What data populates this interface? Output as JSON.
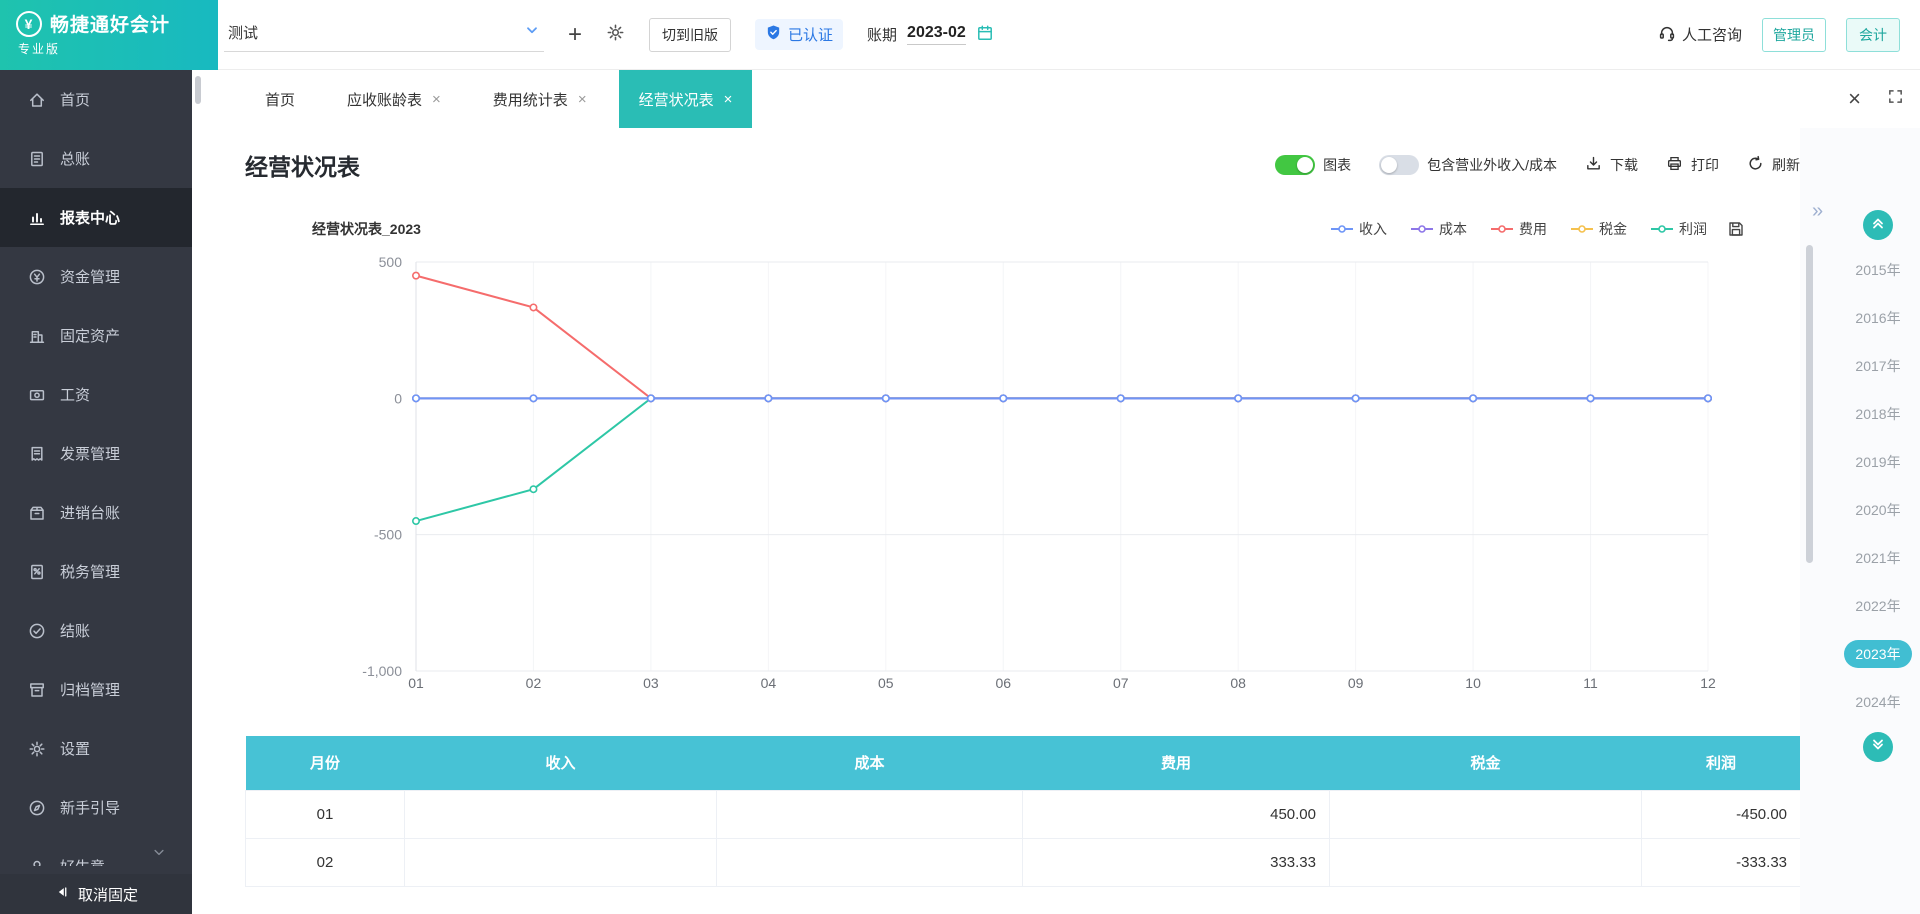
{
  "colors": {
    "logo_teal": "#1fc3ae",
    "sidebar_bg": "#343842",
    "active_tab_teal": "#2abdb5",
    "table_header_cyan": "#47c2d5",
    "certified_blue": "#2b78e4",
    "toggle_on_green": "#42c742",
    "year_pill_cyan": "#41bed2"
  },
  "topbar": {
    "logo_title": "畅捷通好会计",
    "logo_badge": "专业版",
    "workspace_value": "测试",
    "switch_old_label": "切到旧版",
    "certified_label": "已认证",
    "period_label": "账期",
    "period_value": "2023-02",
    "support_label": "人工咨询",
    "admin_button": "管理员",
    "role_button": "会计",
    "icons": {
      "workspace_caret": "chevron-down-icon",
      "add": "plus-icon",
      "settings": "gear-icon",
      "certified": "shield-check-icon",
      "calendar": "calendar-icon",
      "support": "headset-icon"
    }
  },
  "sidebar": {
    "items": [
      {
        "name": "home",
        "icon": "home-icon",
        "label": "首页"
      },
      {
        "name": "general-ledger",
        "icon": "ledger-icon",
        "label": "总账"
      },
      {
        "name": "report-center",
        "icon": "report-icon",
        "label": "报表中心",
        "active": true
      },
      {
        "name": "funds",
        "icon": "fund-icon",
        "label": "资金管理"
      },
      {
        "name": "fixed-assets",
        "icon": "asset-icon",
        "label": "固定资产"
      },
      {
        "name": "payroll",
        "icon": "salary-icon",
        "label": "工资"
      },
      {
        "name": "invoice-mgmt",
        "icon": "invoice-icon",
        "label": "发票管理"
      },
      {
        "name": "purchase-sale-ledger",
        "icon": "inventory-icon",
        "label": "进销台账"
      },
      {
        "name": "tax-mgmt",
        "icon": "tax-icon",
        "label": "税务管理"
      },
      {
        "name": "closing",
        "icon": "closing-icon",
        "label": "结账"
      },
      {
        "name": "archive-mgmt",
        "icon": "archive-icon",
        "label": "归档管理"
      },
      {
        "name": "settings",
        "icon": "settings-icon",
        "label": "设置"
      },
      {
        "name": "beginner-guide",
        "icon": "guide-icon",
        "label": "新手引导"
      },
      {
        "name": "haoshengyi",
        "icon": "member-icon",
        "label": "好生意",
        "clipped": true
      }
    ],
    "unpin_label": "取消固定",
    "unpin_icon": "collapse-left-icon",
    "scroll_hint_icon": "chevron-down-icon"
  },
  "tabs": [
    {
      "label": "首页",
      "closable": false
    },
    {
      "label": "应收账龄表",
      "closable": true
    },
    {
      "label": "费用统计表",
      "closable": true
    },
    {
      "label": "经营状况表",
      "closable": true,
      "active": true
    }
  ],
  "tabbar_actions": {
    "close": "close-icon",
    "expand": "fullscreen-icon"
  },
  "page": {
    "title": "经营状况表",
    "chart_toggle_label": "图表",
    "chart_toggle_on": true,
    "include_toggle_label": "包含营业外收入/成本",
    "include_toggle_on": false,
    "download_label": "下载",
    "print_label": "打印",
    "refresh_label": "刷新",
    "icons": {
      "download": "download-icon",
      "print": "printer-icon",
      "refresh": "refresh-icon",
      "chart_save": "save-icon"
    }
  },
  "chart_data": {
    "type": "line",
    "title": "经营状况表_2023",
    "x": [
      "01",
      "02",
      "03",
      "04",
      "05",
      "06",
      "07",
      "08",
      "09",
      "10",
      "11",
      "12"
    ],
    "series": [
      {
        "name": "收入",
        "color": "#6e95f7",
        "values": [
          0,
          0,
          0,
          0,
          0,
          0,
          0,
          0,
          0,
          0,
          0,
          0
        ]
      },
      {
        "name": "成本",
        "color": "#8d76e8",
        "values": [
          0,
          0,
          0,
          0,
          0,
          0,
          0,
          0,
          0,
          0,
          0,
          0
        ]
      },
      {
        "name": "费用",
        "color": "#f56c6c",
        "values": [
          450,
          333.33,
          0,
          0,
          0,
          0,
          0,
          0,
          0,
          0,
          0,
          0
        ]
      },
      {
        "name": "税金",
        "color": "#f5c14e",
        "values": [
          0,
          0,
          0,
          0,
          0,
          0,
          0,
          0,
          0,
          0,
          0,
          0
        ]
      },
      {
        "name": "利润",
        "color": "#2ec7a6",
        "values": [
          -450,
          -333.33,
          0,
          0,
          0,
          0,
          0,
          0,
          0,
          0,
          0,
          0
        ]
      }
    ],
    "ylim": [
      -1000,
      500
    ],
    "yticks": [
      500,
      0,
      -500,
      -1000
    ],
    "legend_position": "top-right",
    "grid": true
  },
  "year_panel": {
    "years": [
      "2015年",
      "2016年",
      "2017年",
      "2018年",
      "2019年",
      "2020年",
      "2021年",
      "2022年",
      "2023年",
      "2024年"
    ],
    "selected": "2023年",
    "scroll_up_icon": "double-chevron-up-icon",
    "scroll_down_icon": "double-chevron-down-icon"
  },
  "table": {
    "headers": [
      "月份",
      "收入",
      "成本",
      "费用",
      "税金",
      "利润"
    ],
    "rows": [
      [
        "01",
        "",
        "",
        "450.00",
        "",
        "-450.00"
      ],
      [
        "02",
        "",
        "",
        "333.33",
        "",
        "-333.33"
      ]
    ]
  }
}
